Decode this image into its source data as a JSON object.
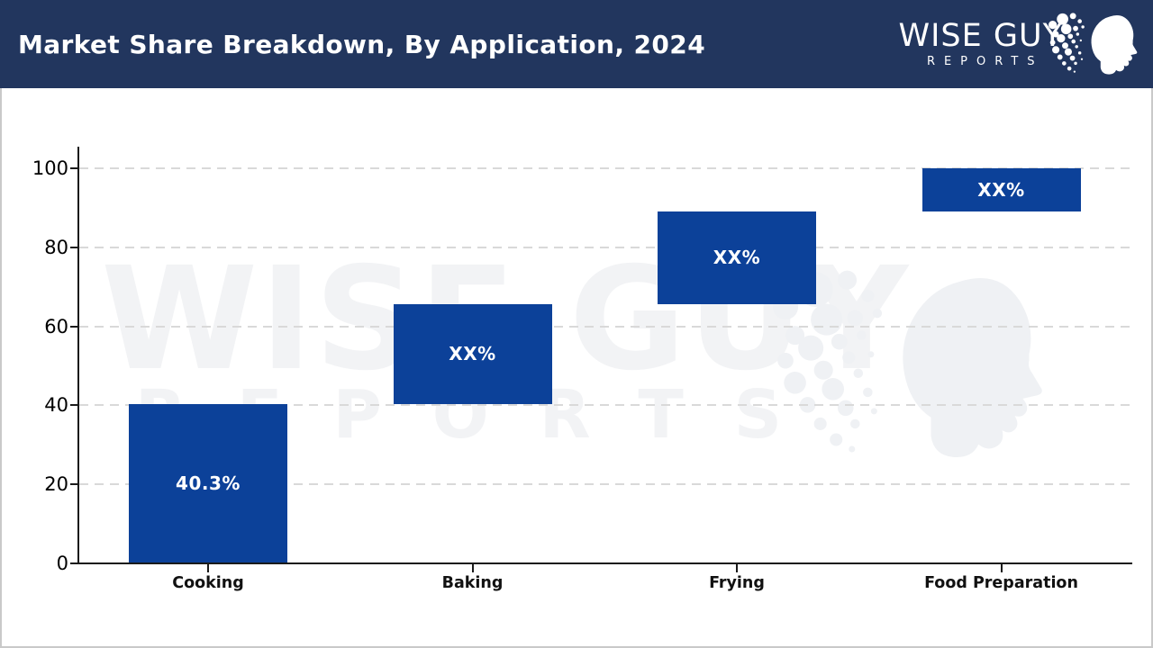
{
  "header": {
    "title": "Market Share Breakdown, By Application, 2024",
    "bg_color": "#22365e",
    "logo": {
      "line1": "WISE GUY",
      "line2": "REPORTS"
    }
  },
  "watermark": {
    "line1": "WISE GUY",
    "line2": "REPORTS"
  },
  "chart_data": {
    "type": "bar",
    "subtype": "waterfall",
    "title": "Market Share Breakdown, By Application, 2024",
    "categories": [
      "Cooking",
      "Baking",
      "Frying",
      "Food Preparation"
    ],
    "segments": [
      {
        "category": "Cooking",
        "start": 0,
        "end": 40.3,
        "label": "40.3%"
      },
      {
        "category": "Baking",
        "start": 40.3,
        "end": 65.7,
        "label": "XX%"
      },
      {
        "category": "Frying",
        "start": 65.7,
        "end": 89.0,
        "label": "XX%"
      },
      {
        "category": "Food Preparation",
        "start": 89.0,
        "end": 100.0,
        "label": "XX%"
      }
    ],
    "xlabel": "",
    "ylabel": "",
    "ylim": [
      0,
      100
    ],
    "yticks": [
      0,
      20,
      40,
      60,
      80,
      100
    ],
    "grid": "horizontal dashed, behind bars",
    "legend": "none",
    "bar_color": "#0c4199",
    "bar_label_color": "#ffffff",
    "axis_color": "#1a1a1a"
  }
}
